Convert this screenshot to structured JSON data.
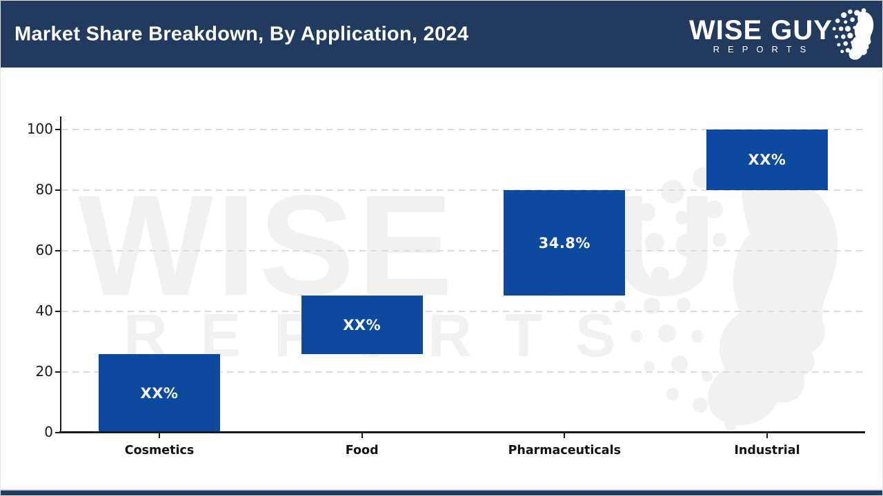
{
  "header": {
    "title": "Market Share Breakdown, By Application, 2024",
    "logo": {
      "line1": "WISE GUY",
      "line2": "REPORTS"
    }
  },
  "watermark": {
    "line1": "WISE GU",
    "line2": "REPORTS"
  },
  "chart_data": {
    "type": "bar",
    "subtype": "floating-waterfall",
    "title": "Market Share Breakdown, By Application, 2024",
    "categories": [
      "Cosmetics",
      "Food",
      "Pharmaceuticals",
      "Industrial"
    ],
    "segments": [
      {
        "category": "Cosmetics",
        "start": 0,
        "end": 25.9,
        "value": 25.9,
        "label": "XX%"
      },
      {
        "category": "Food",
        "start": 25.9,
        "end": 45.2,
        "value": 19.3,
        "label": "XX%"
      },
      {
        "category": "Pharmaceuticals",
        "start": 45.2,
        "end": 80,
        "value": 34.8,
        "label": "34.8%"
      },
      {
        "category": "Industrial",
        "start": 80,
        "end": 100,
        "value": 20,
        "label": "XX%"
      }
    ],
    "yticks": [
      0,
      20,
      40,
      60,
      80,
      100
    ],
    "ylim": [
      0,
      100
    ],
    "xlabel": "",
    "ylabel": "",
    "grid": "horizontal-dashed",
    "legend": "none",
    "bar_color": "#0D4A9F",
    "bar_label_color": "#ffffff",
    "header_color": "#233A5F",
    "watermark_color": "#f1f1f2"
  }
}
